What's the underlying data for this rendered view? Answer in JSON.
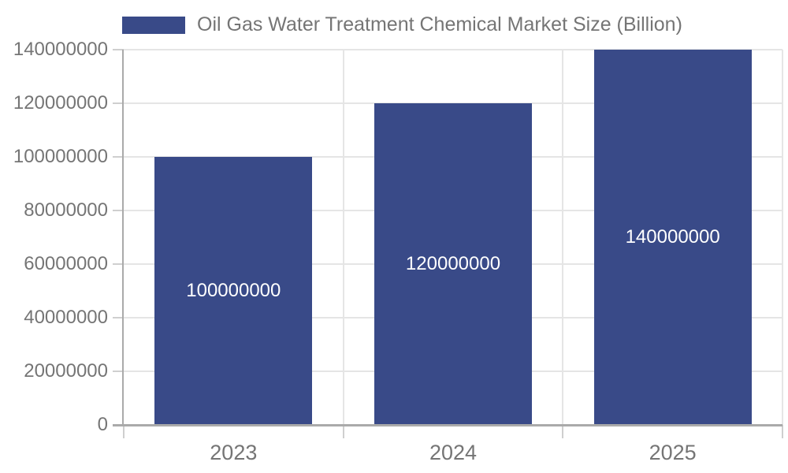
{
  "chart_data": {
    "type": "bar",
    "title": "Oil Gas Water Treatment Chemical Market Size (Billion)",
    "legend": {
      "position": "top-center",
      "entries": [
        "Oil Gas Water Treatment Chemical Market Size (Billion)"
      ]
    },
    "categories": [
      "2023",
      "2024",
      "2025"
    ],
    "values": [
      100000000,
      120000000,
      140000000
    ],
    "bar_labels": [
      "100000000",
      "120000000",
      "140000000"
    ],
    "xlabel": "",
    "ylabel": "",
    "ylim": [
      0,
      140000000
    ],
    "ytick_step": 20000000,
    "yticks": [
      0,
      20000000,
      40000000,
      60000000,
      80000000,
      100000000,
      120000000,
      140000000
    ],
    "grid": true,
    "colors": {
      "bar": "#394A88",
      "bar_label": "#FFFFFF",
      "grid": "#E5E5E5",
      "tick": "#CFCFCF",
      "axis": "#AAAAAA",
      "text": "#757575",
      "background": "#FFFFFF"
    }
  }
}
